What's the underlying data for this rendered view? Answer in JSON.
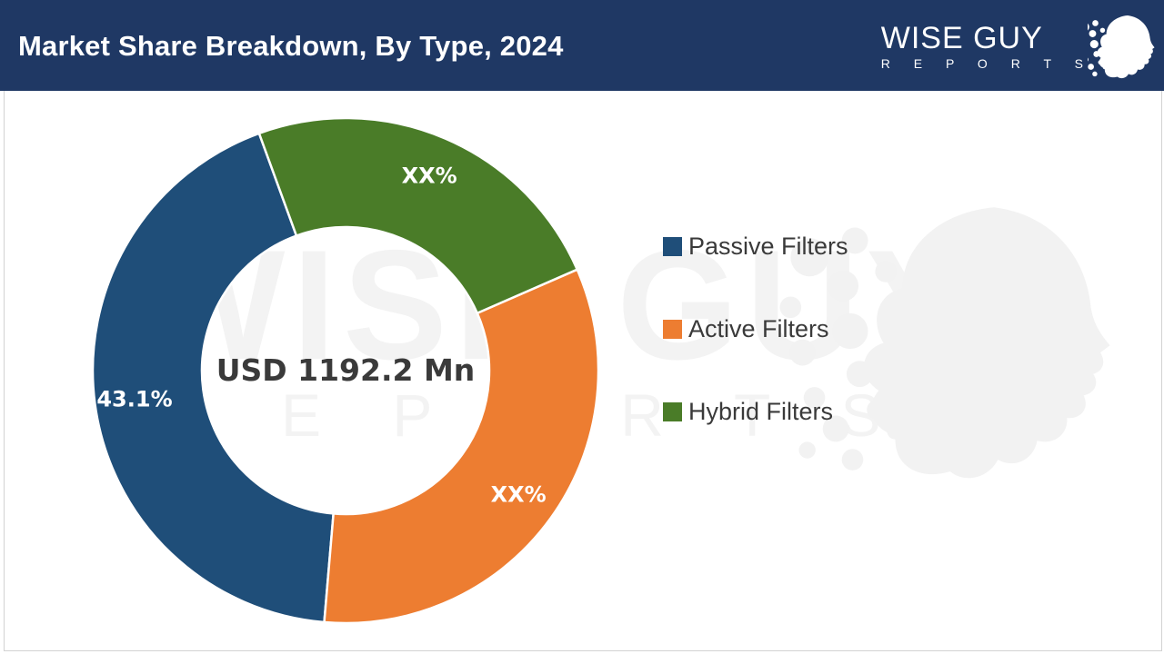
{
  "colors": {
    "header_bg": "#1f3864",
    "card_border": "#d2d2d2",
    "text_dark": "#3a3a3a",
    "watermark": "#f2f2f2",
    "slice_separator": "#ffffff"
  },
  "header": {
    "title": "Market Share Breakdown, By Type, 2024",
    "logo": {
      "name": "WISE GUY",
      "sub": "R E P O R T S"
    }
  },
  "chart_data": {
    "type": "pie",
    "subtype": "donut",
    "title": "Market Share Breakdown, By Type, 2024",
    "center_label": "USD 1192.2 Mn",
    "start_angle_deg": 110,
    "direction": "counterclockwise",
    "inner_radius_ratio": 0.57,
    "legend_position": "right",
    "slices": [
      {
        "name": "Passive Filters",
        "value": 43.1,
        "label": "43.1%",
        "color": "#1f4e79",
        "label_color": "#ffffff"
      },
      {
        "name": "Active Filters",
        "value": 32.9,
        "label": "XX%",
        "color": "#ed7d31",
        "label_color": "#ffffff"
      },
      {
        "name": "Hybrid Filters",
        "value": 24.0,
        "label": "XX%",
        "color": "#4a7c28",
        "label_color": "#ffffff"
      }
    ]
  },
  "watermark": {
    "line1": "WISE GUY",
    "line2": "R E P O R T S"
  }
}
